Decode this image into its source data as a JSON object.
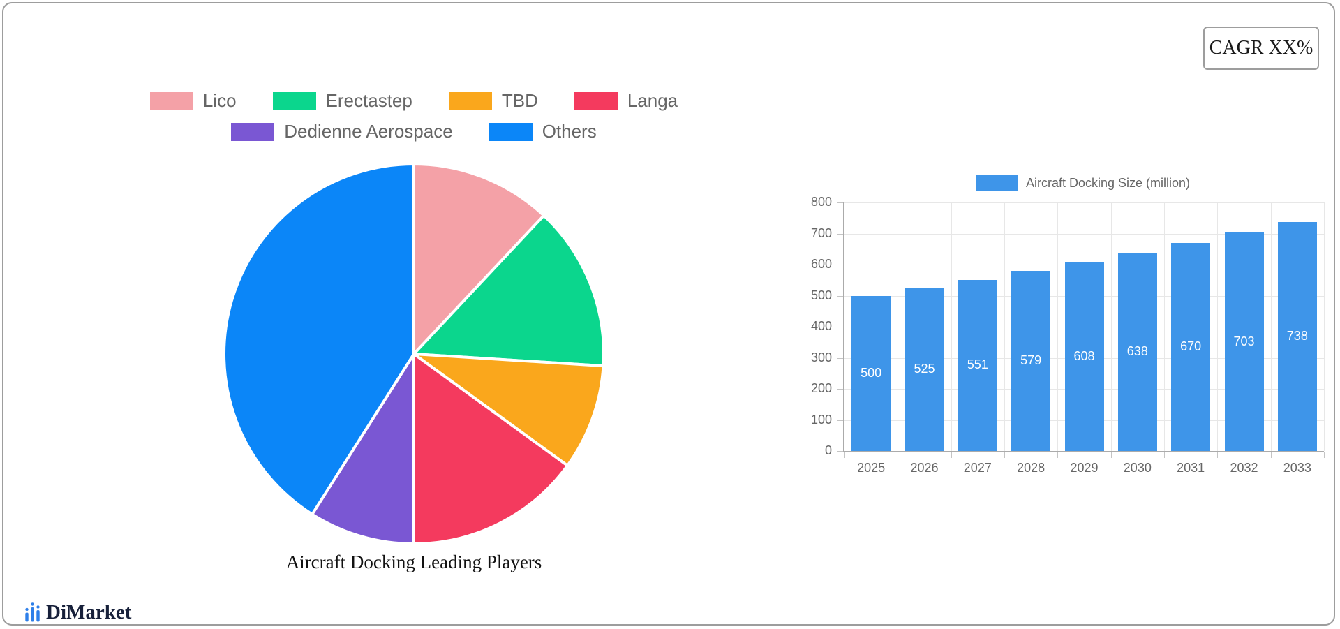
{
  "cagr_badge": {
    "label": "CAGR XX%"
  },
  "brand": {
    "name": "DiMarket",
    "icon_color": "#2e7fe9"
  },
  "chart_data": [
    {
      "type": "pie",
      "title": "Aircraft Docking Leading Players",
      "legend_position": "top",
      "start_angle": "top",
      "direction": "clockwise",
      "slices": [
        {
          "label": "Lico",
          "value": 12,
          "color": "#f4a1a7"
        },
        {
          "label": "Erectastep",
          "value": 14,
          "color": "#0bd68d"
        },
        {
          "label": "TBD",
          "value": 9,
          "color": "#faa71c"
        },
        {
          "label": "Langa",
          "value": 15,
          "color": "#f43a5e"
        },
        {
          "label": "Dedienne Aerospace",
          "value": 9,
          "color": "#7a57d3"
        },
        {
          "label": "Others",
          "value": 41,
          "color": "#0b86f8"
        }
      ]
    },
    {
      "type": "bar",
      "legend": "Aircraft Docking Size (million)",
      "bar_color": "#3e95e9",
      "categories": [
        "2025",
        "2026",
        "2027",
        "2028",
        "2029",
        "2030",
        "2031",
        "2032",
        "2033"
      ],
      "values": [
        500,
        525,
        551,
        579,
        608,
        638,
        670,
        703,
        738
      ],
      "ylim": [
        0,
        800
      ],
      "yticks": [
        0,
        100,
        200,
        300,
        400,
        500,
        600,
        700,
        800
      ],
      "grid": true,
      "value_labels": {
        "show": true,
        "color": "#ffffff",
        "position": "center"
      }
    }
  ]
}
